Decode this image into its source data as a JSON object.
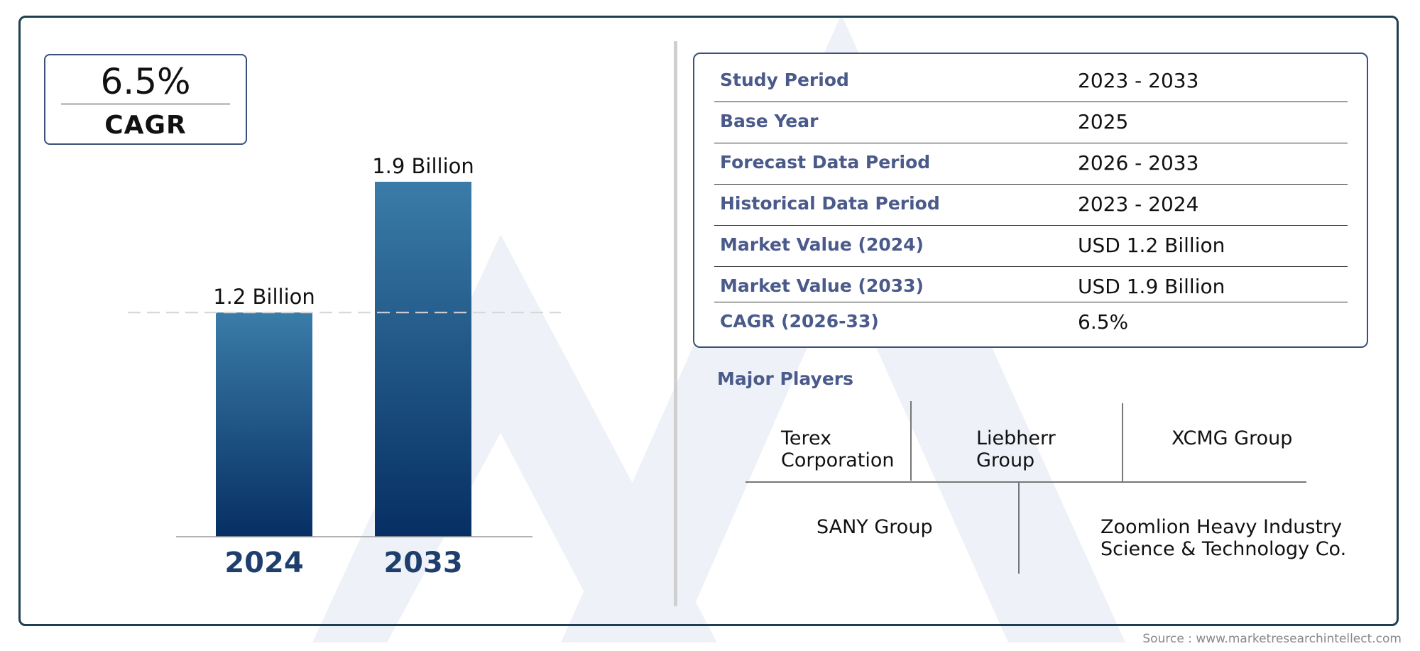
{
  "cagr": {
    "value": "6.5%",
    "label": "CAGR"
  },
  "chart_data": {
    "type": "bar",
    "categories": [
      "2024",
      "2033"
    ],
    "values": [
      1.2,
      1.9
    ],
    "value_labels": [
      "1.2 Billion",
      "1.9 Billion"
    ],
    "ylim": [
      0,
      1.9
    ],
    "grid": false,
    "reference_line": 1.2,
    "bar_colors": {
      "top": "#3a7ca8",
      "bottom": "#062f63"
    },
    "category_label_color": "#1e3f6e"
  },
  "info": {
    "rows": [
      {
        "label": "Study Period",
        "value": "2023 - 2033"
      },
      {
        "label": "Base Year",
        "value": "2025"
      },
      {
        "label": "Forecast Data Period",
        "value": "2026 - 2033"
      },
      {
        "label": "Historical Data Period",
        "value": "2023 - 2024"
      },
      {
        "label": "Market Value (2024)",
        "value": "USD 1.2 Billion"
      },
      {
        "label": "Market Value (2033)",
        "value": "USD 1.9 Billion"
      },
      {
        "label": "CAGR (2026-33)",
        "value": "6.5%"
      }
    ]
  },
  "players": {
    "title": "Major Players",
    "items": [
      "Terex\nCorporation",
      "Liebherr\nGroup",
      "XCMG Group",
      "SANY Group",
      "Zoomlion Heavy Industry\nScience & Technology Co."
    ]
  },
  "source": "Source : www.marketresearchintellect.com",
  "colors": {
    "frame": "#1e3f4f",
    "accent": "#4a5a8a"
  }
}
